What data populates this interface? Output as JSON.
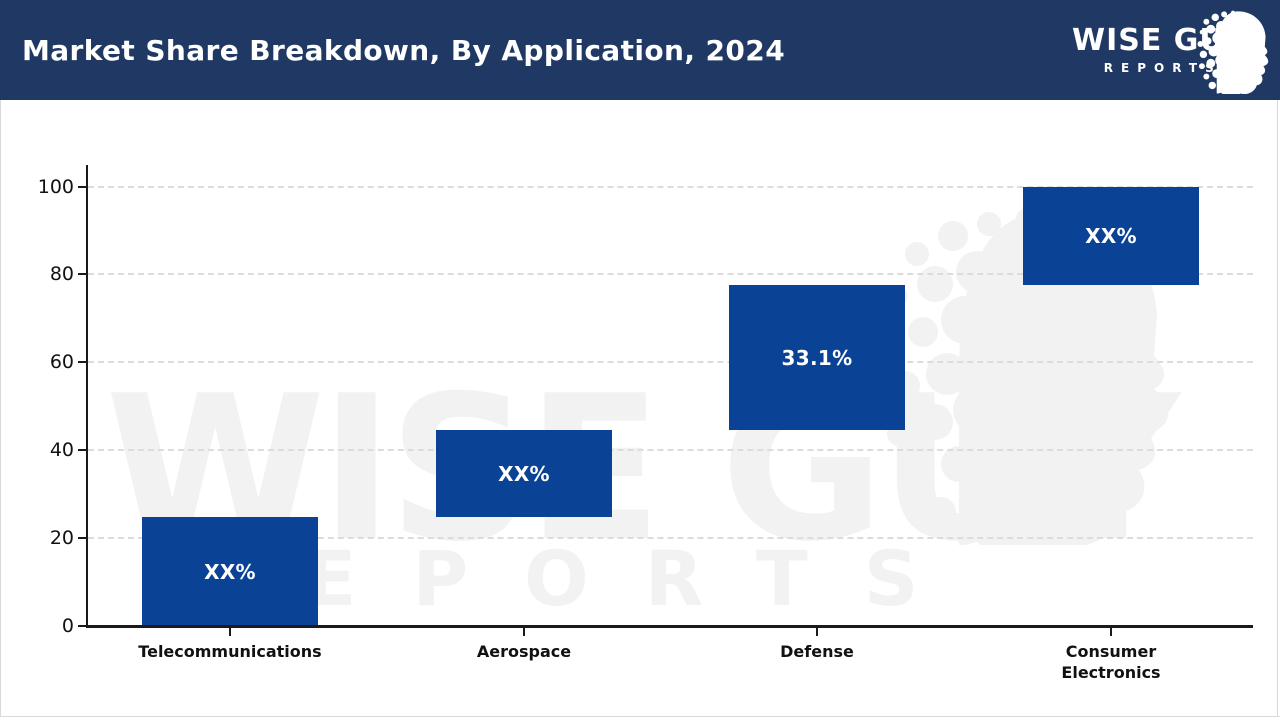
{
  "header": {
    "title": "Market Share Breakdown, By Application, 2024",
    "background_color": "#1f3864",
    "logo": {
      "line1": "WISE GUY",
      "line2": "REPORTS"
    }
  },
  "watermark": {
    "line1": "WISE GUY",
    "line2": "REPORTS",
    "color": "#f2f2f3"
  },
  "chart_data": {
    "type": "bar",
    "subtype": "waterfall",
    "title": "Market Share Breakdown, By Application, 2024",
    "xlabel": "",
    "ylabel": "",
    "categories": [
      "Telecommunications",
      "Aerospace",
      "Defense",
      "Consumer\nElectronics"
    ],
    "segments": [
      {
        "category": "Telecommunications",
        "start": 0,
        "end": 24.8,
        "label": "XX%"
      },
      {
        "category": "Aerospace",
        "start": 24.7,
        "end": 44.6,
        "label": "XX%"
      },
      {
        "category": "Defense",
        "start": 44.5,
        "end": 77.6,
        "label": "33.1%"
      },
      {
        "category": "Consumer Electronics",
        "start": 77.7,
        "end": 100,
        "label": "XX%"
      }
    ],
    "yticks": [
      0,
      20,
      40,
      60,
      80,
      100
    ],
    "ylim": [
      0,
      105
    ],
    "grid": "horizontal-dashed",
    "legend": "none",
    "bar_color": "#0a4296",
    "value_label_color": "#ffffff",
    "axis_color": "#1a1a1a",
    "gridline_color": "#dcdcdc"
  }
}
